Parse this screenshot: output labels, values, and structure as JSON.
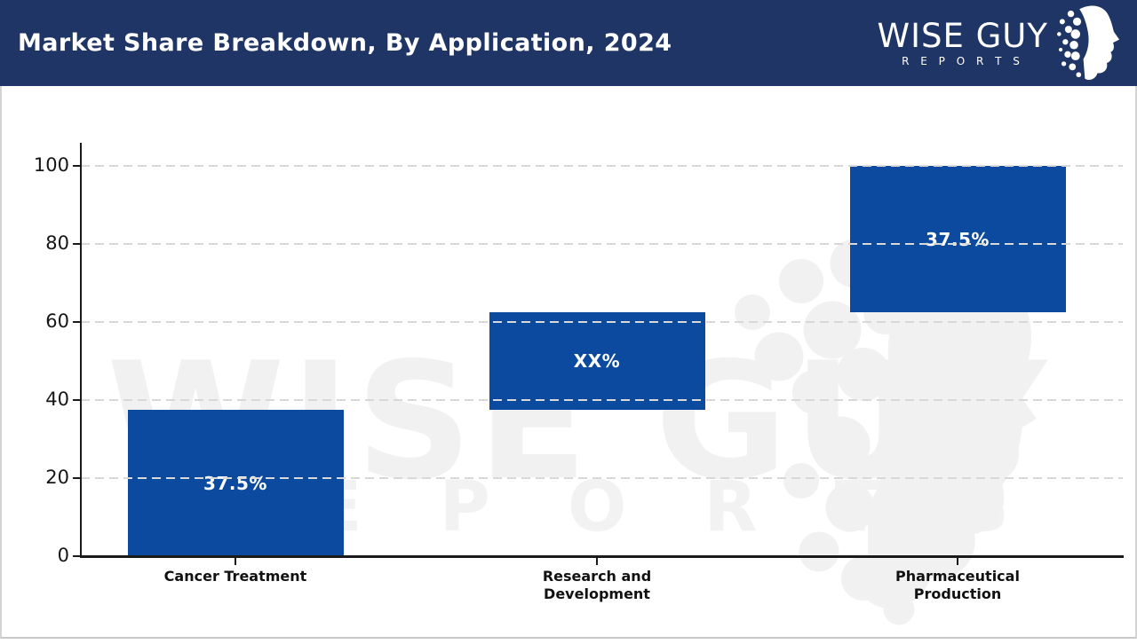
{
  "header": {
    "title": "Market Share Breakdown, By Application, 2024",
    "logo": {
      "line1": "WISE GUY",
      "line2": "R E P O R T S"
    }
  },
  "watermark": {
    "line1": "WISE GUY",
    "line2": "R E P O R T S"
  },
  "colors": {
    "header_bg": "#1f3565",
    "bar": "#0b4a9e",
    "gridline": "#d8d8d8",
    "axis": "#1a1a1a",
    "bar_label": "#ffffff",
    "watermark": "#f1f1f1"
  },
  "chart_data": {
    "type": "bar",
    "subtype": "floating-segment (waterfall-style market share)",
    "title": "Market Share Breakdown, By Application, 2024",
    "categories": [
      "Cancer Treatment",
      "Research and Development",
      "Pharmaceutical Production"
    ],
    "bars": [
      {
        "category": "Cancer Treatment",
        "start": 0,
        "end": 37.5,
        "label": "37.5%"
      },
      {
        "category": "Research and Development",
        "start": 37.5,
        "end": 62.5,
        "label": "XX%"
      },
      {
        "category": "Pharmaceutical Production",
        "start": 62.5,
        "end": 100,
        "label": "37.5%"
      }
    ],
    "values": [
      37.5,
      25,
      37.5
    ],
    "yticks": [
      0,
      20,
      40,
      60,
      80,
      100
    ],
    "ylim": [
      0,
      100
    ],
    "xlabel": "",
    "ylabel": "",
    "grid": "horizontal dashed, drawn over bars",
    "legend": "none"
  }
}
